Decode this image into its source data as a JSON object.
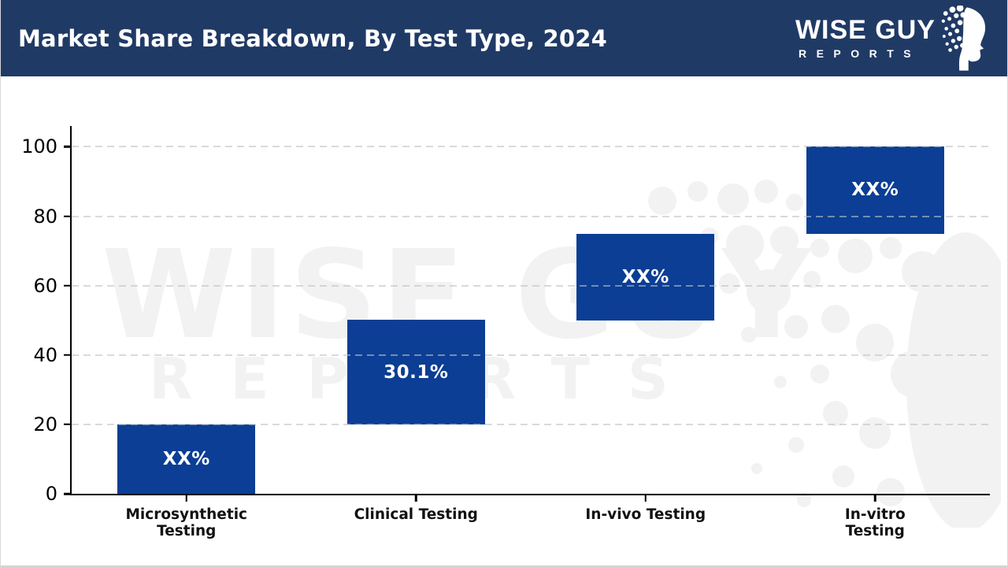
{
  "header": {
    "title": "Market Share Breakdown, By Test Type, 2024",
    "logo": {
      "line1": "WISE GUY",
      "line2": "REPORTS"
    }
  },
  "watermark": {
    "line1": "WISE GUY",
    "line2": "REPORTS"
  },
  "colors": {
    "header_bg": "#203a66",
    "bar": "#0b3e94",
    "bar_label": "#ffffff",
    "axis": "#000000",
    "grid": "rgba(188,193,202,0.6)",
    "watermark": "#f2f2f2"
  },
  "chart_data": {
    "type": "bar",
    "subtype": "floating-waterfall",
    "title": "Market Share Breakdown, By Test Type, 2024",
    "xlabel": "",
    "ylabel": "",
    "categories": [
      "Microsynthetic\nTesting",
      "Clinical Testing",
      "In-vivo Testing",
      "In-vitro Testing"
    ],
    "segments": [
      {
        "category": "Microsynthetic Testing",
        "start": 0,
        "end": 20,
        "label": "XX%"
      },
      {
        "category": "Clinical Testing",
        "start": 20,
        "end": 50.1,
        "label": "30.1%"
      },
      {
        "category": "In-vivo Testing",
        "start": 50,
        "end": 75,
        "label": "XX%"
      },
      {
        "category": "In-vitro Testing",
        "start": 75,
        "end": 100,
        "label": "XX%"
      }
    ],
    "yticks": [
      0,
      20,
      40,
      60,
      80,
      100
    ],
    "ylim": [
      0,
      106
    ],
    "bar_width_fraction": 0.6,
    "grid": "horizontal-dashed-over-bars",
    "legend": "none"
  }
}
